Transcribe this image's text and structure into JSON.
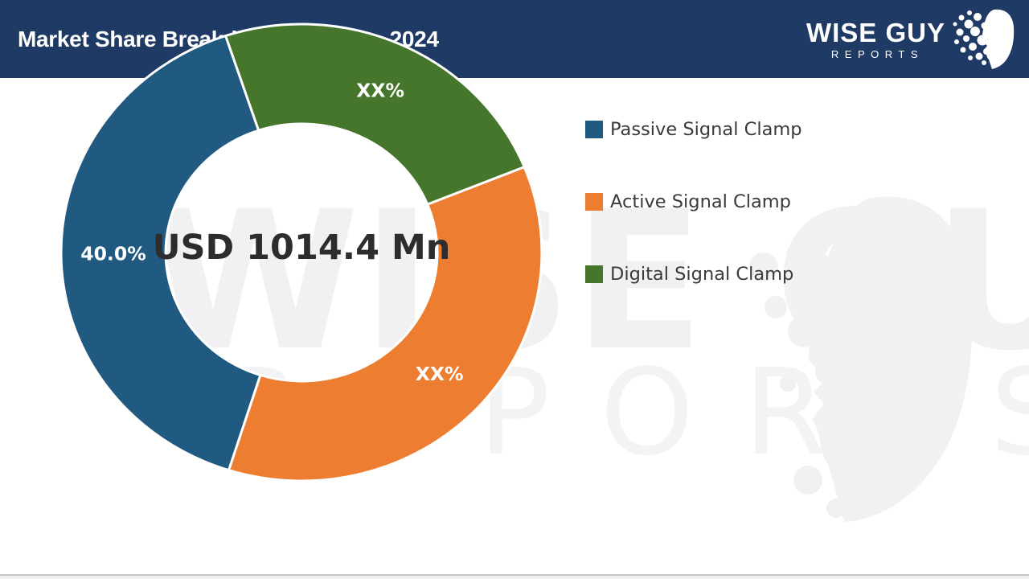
{
  "header": {
    "title": "Market Share Breakdown, By Type, 2024",
    "bg_color": "#203a66",
    "logo": {
      "line1": "WISE GUY",
      "line2": "REPORTS"
    }
  },
  "chart_data": {
    "type": "pie",
    "subtype": "donut",
    "title": "Market Share Breakdown, By Type, 2024",
    "center_label": "USD 1014.4 Mn",
    "start_angle_deg": 108.4,
    "direction": "counterclockwise",
    "legend_position": "right",
    "segments": [
      {
        "name": "Passive Signal Clamp",
        "display_label": "40.0%",
        "value_pct_est": 40.0,
        "color": "#215a81"
      },
      {
        "name": "Active Signal Clamp",
        "display_label": "XX%",
        "value_pct_est": 36.0,
        "color": "#ed7d31"
      },
      {
        "name": "Digital Signal Clamp",
        "display_label": "XX%",
        "value_pct_est": 24.0,
        "color": "#45762b"
      }
    ]
  },
  "legend": {
    "items": [
      {
        "label": "Passive Signal Clamp",
        "color": "#215a81"
      },
      {
        "label": "Active Signal Clamp",
        "color": "#ed7d31"
      },
      {
        "label": "Digital Signal Clamp",
        "color": "#45762b"
      }
    ]
  },
  "watermark": {
    "line1": "WISE GUY",
    "line2": "REPORTS"
  },
  "colors": {
    "header_bg": "#203a66",
    "center_text": "#2d2d2d",
    "legend_text": "#3a3a3a",
    "hairline": "#c6c6ca"
  }
}
